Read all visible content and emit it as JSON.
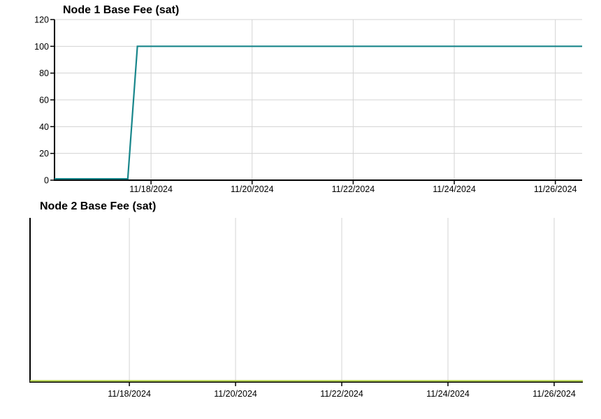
{
  "style": {
    "background": "#ffffff",
    "axis_color": "#000000",
    "grid_color": "#d3d3d3",
    "text_color": "#000000",
    "node1_line_color": "#18868B",
    "node2_line_color": "#B7D54F"
  },
  "chart_data": [
    {
      "type": "line",
      "title": "Node 1 Base Fee (sat)",
      "xlabel": "",
      "ylabel": "",
      "x_unit": "days, 0 = 11/16/2024 00:00",
      "xlim": [
        0.09,
        10.53
      ],
      "ylim": [
        0,
        120
      ],
      "yticks": [
        0,
        20,
        40,
        60,
        80,
        100,
        120
      ],
      "xticks": [
        {
          "t": 2,
          "label": "11/18/2024"
        },
        {
          "t": 4,
          "label": "11/20/2024"
        },
        {
          "t": 6,
          "label": "11/22/2024"
        },
        {
          "t": 8,
          "label": "11/24/2024"
        },
        {
          "t": 10,
          "label": "11/26/2024"
        }
      ],
      "grid": {
        "vertical": true,
        "horizontal": true
      },
      "legend": "none",
      "series": [
        {
          "name": "Node 1 Base Fee (sat)",
          "color": "#18868B",
          "points": [
            [
              0.09,
              1
            ],
            [
              1.54,
              1
            ],
            [
              1.73,
              100
            ],
            [
              10.53,
              100
            ]
          ]
        }
      ]
    },
    {
      "type": "line",
      "title": "Node 2 Base Fee (sat)",
      "xlabel": "",
      "ylabel": "",
      "x_unit": "days, 0 = 11/16/2024 00:00",
      "xlim": [
        0.13,
        10.54
      ],
      "ylim": [
        0,
        100
      ],
      "yticks": [],
      "xticks": [
        {
          "t": 2,
          "label": "11/18/2024"
        },
        {
          "t": 4,
          "label": "11/20/2024"
        },
        {
          "t": 6,
          "label": "11/22/2024"
        },
        {
          "t": 8,
          "label": "11/24/2024"
        },
        {
          "t": 10,
          "label": "11/26/2024"
        }
      ],
      "grid": {
        "vertical": true,
        "horizontal": false
      },
      "legend": "none",
      "series": [
        {
          "name": "Node 2 Base Fee (sat)",
          "color": "#B7D54F",
          "points": [
            [
              0.13,
              0
            ],
            [
              10.54,
              0
            ]
          ]
        }
      ]
    }
  ]
}
